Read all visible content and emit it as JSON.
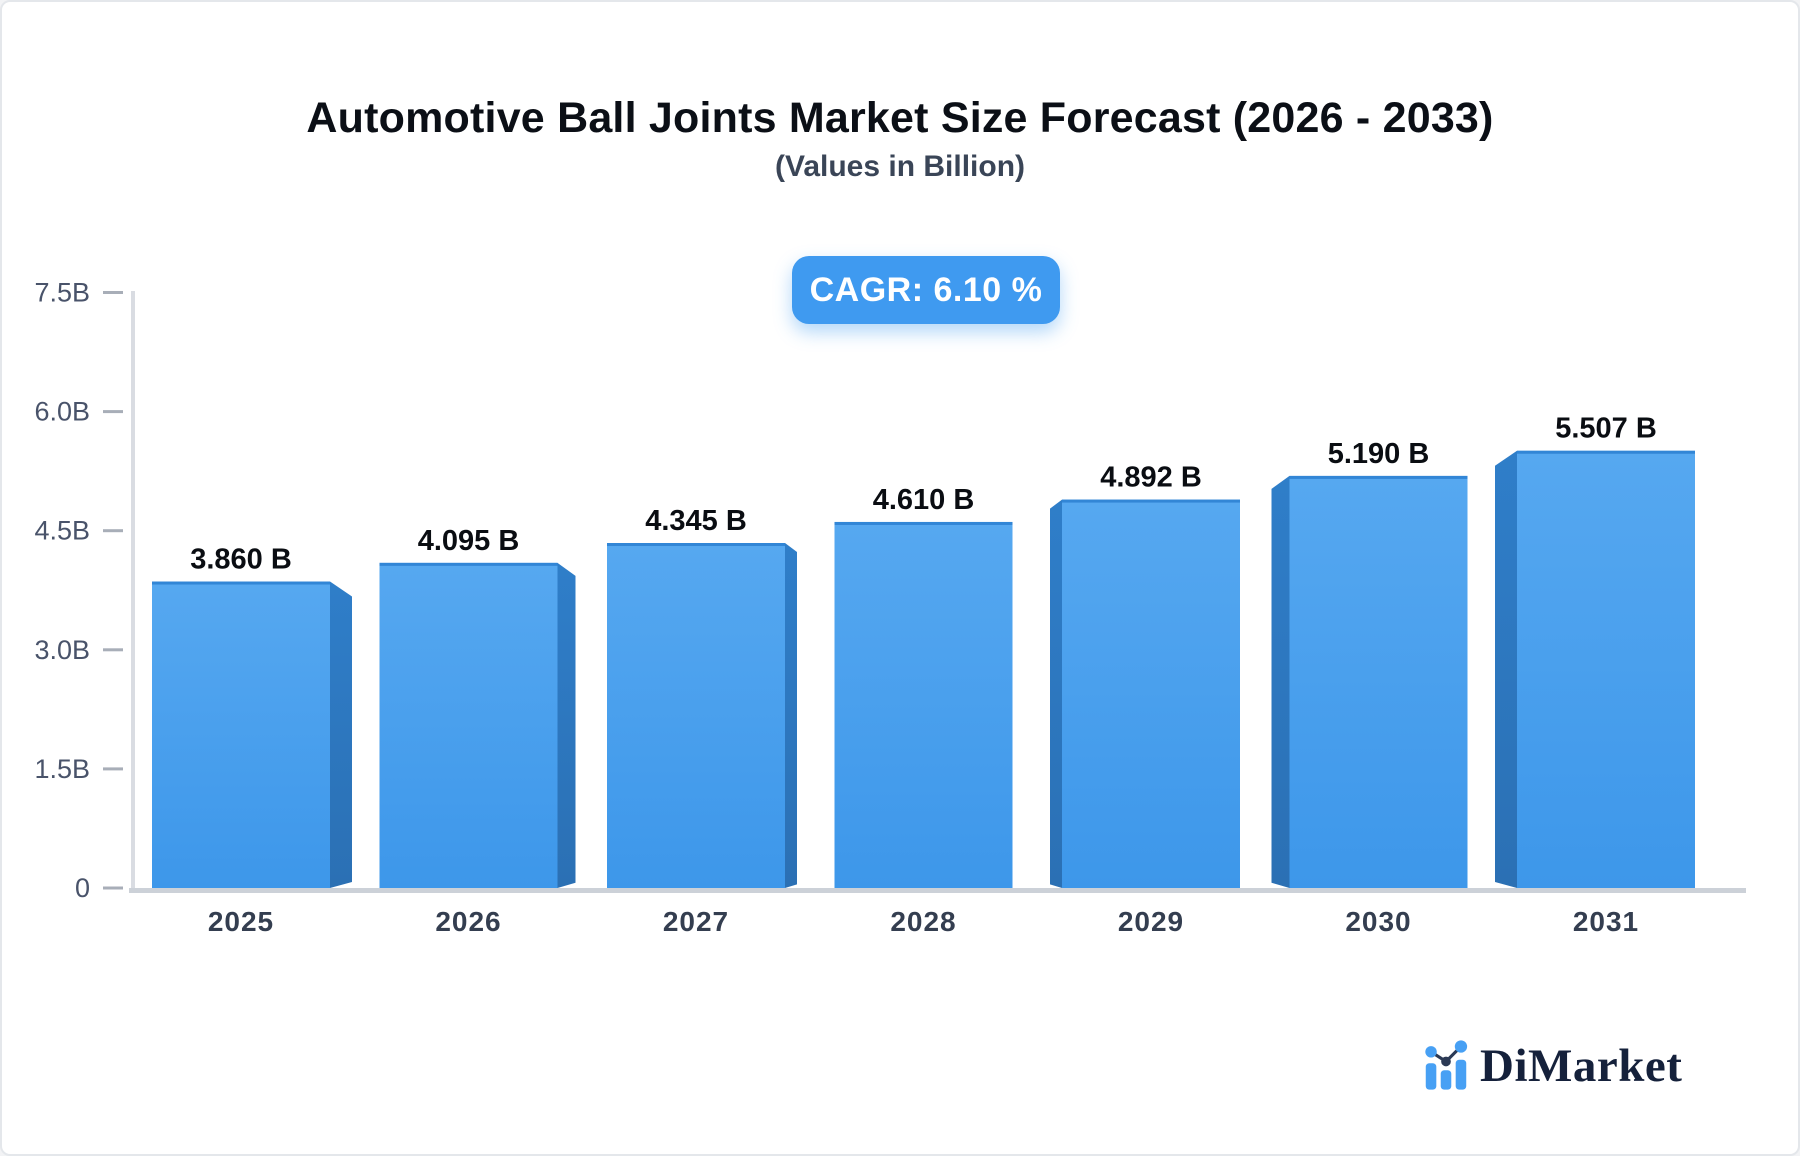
{
  "title": "Automotive Ball Joints Market Size Forecast (2026 - 2033)",
  "subtitle": "(Values in Billion)",
  "cagr_badge": "CAGR: 6.10 %",
  "logo": {
    "text": "DiMarket",
    "icon": "mini-bar-chart-icon"
  },
  "chart_data": {
    "type": "bar",
    "title": "Automotive Ball Joints Market Size Forecast (2026 - 2033)",
    "subtitle": "(Values in Billion)",
    "categories": [
      "2025",
      "2026",
      "2027",
      "2028",
      "2029",
      "2030",
      "2031"
    ],
    "values": [
      3.86,
      4.095,
      4.345,
      4.61,
      4.892,
      5.19,
      5.507
    ],
    "value_labels": [
      "3.860 B",
      "4.095 B",
      "4.345 B",
      "4.610 B",
      "4.892 B",
      "5.190 B",
      "5.507 B"
    ],
    "ytick_values": [
      0,
      1.5,
      3,
      4.5,
      6,
      7.5
    ],
    "ytick_labels": [
      "0",
      "1.5B",
      "3.0B",
      "4.5B",
      "6.0B",
      "7.5B"
    ],
    "ylim": [
      0,
      7.5
    ],
    "xlabel": "",
    "ylabel": "",
    "grid": false,
    "legend": "none",
    "effect": "3d-perspective",
    "colors": {
      "bar_face_top": "#56A8F0",
      "bar_face_bottom": "#3D97EA",
      "bar_top_edge": "#2F82D3",
      "bar_side_top": "#2F7EC9",
      "bar_side_bottom": "#2B70B4",
      "axis_line": "#D9DCE2",
      "baseline": "#CCD1D8",
      "tick_dash": "#A8AEB8",
      "ytick_text": "#49536a",
      "xtick_text": "#343e50",
      "value_text": "#0a0d12"
    }
  }
}
